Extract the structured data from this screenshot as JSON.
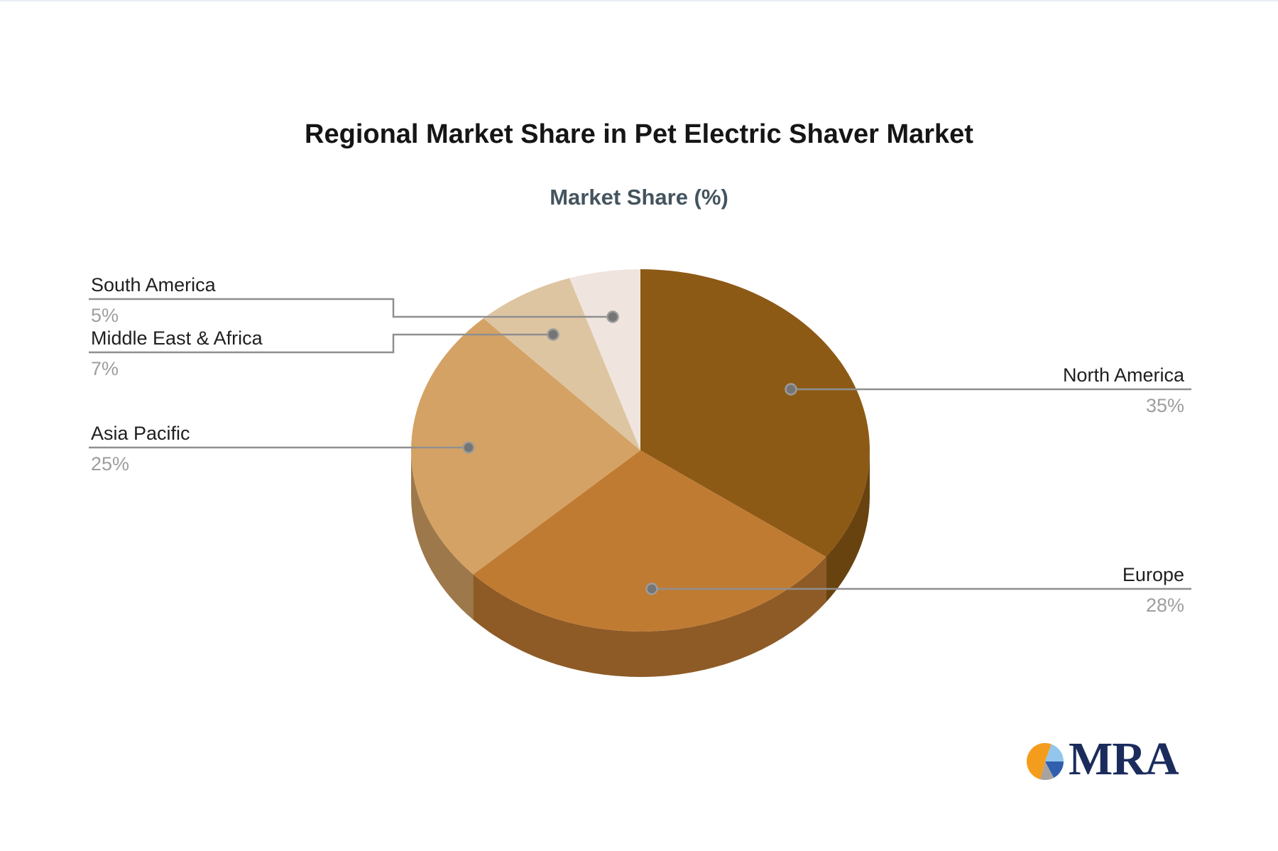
{
  "page": {
    "background": "#ffffff",
    "top_border_color": "#e9eef5"
  },
  "header": {
    "title": "Regional Market Share in Pet Electric Shaver Market",
    "subtitle": "Market Share (%)",
    "title_color": "#151515",
    "subtitle_color": "#44545e"
  },
  "chart_data": {
    "type": "pie",
    "style": "3d-pie",
    "title": "Regional Market Share in Pet Electric Shaver Market",
    "subtitle": "Market Share (%)",
    "unit": "%",
    "direction": "clockwise",
    "start_angle_deg": 0,
    "legend_position": "none",
    "label_style": "external leader lines with name and percent",
    "categories": [
      "North America",
      "Europe",
      "Asia Pacific",
      "Middle East & Africa",
      "South America"
    ],
    "values": [
      35,
      28,
      25,
      7,
      5
    ],
    "percent_labels": [
      "35%",
      "28%",
      "25%",
      "7%",
      "5%"
    ],
    "colors": [
      "#8d5a16",
      "#c07b33",
      "#d4a264",
      "#dec5a2",
      "#efe5de"
    ]
  },
  "leader_style": {
    "line_color": "#8f8f8f",
    "dot_fill": "#757575",
    "dot_ring": "#9b9b9b",
    "name_color": "#1f1f1f",
    "percent_color": "#9e9e9e"
  },
  "logo": {
    "text": "MRA",
    "text_color": "#1b2c5c",
    "icon": {
      "name": "pie-chart-logo-icon",
      "slices": [
        {
          "color": "#f49d1d",
          "from": 195,
          "to": 380
        },
        {
          "color": "#92c6ec",
          "from": 20,
          "to": 90
        },
        {
          "color": "#2f5fae",
          "from": 90,
          "to": 152
        },
        {
          "color": "#a8a39e",
          "from": 152,
          "to": 195
        }
      ]
    }
  }
}
